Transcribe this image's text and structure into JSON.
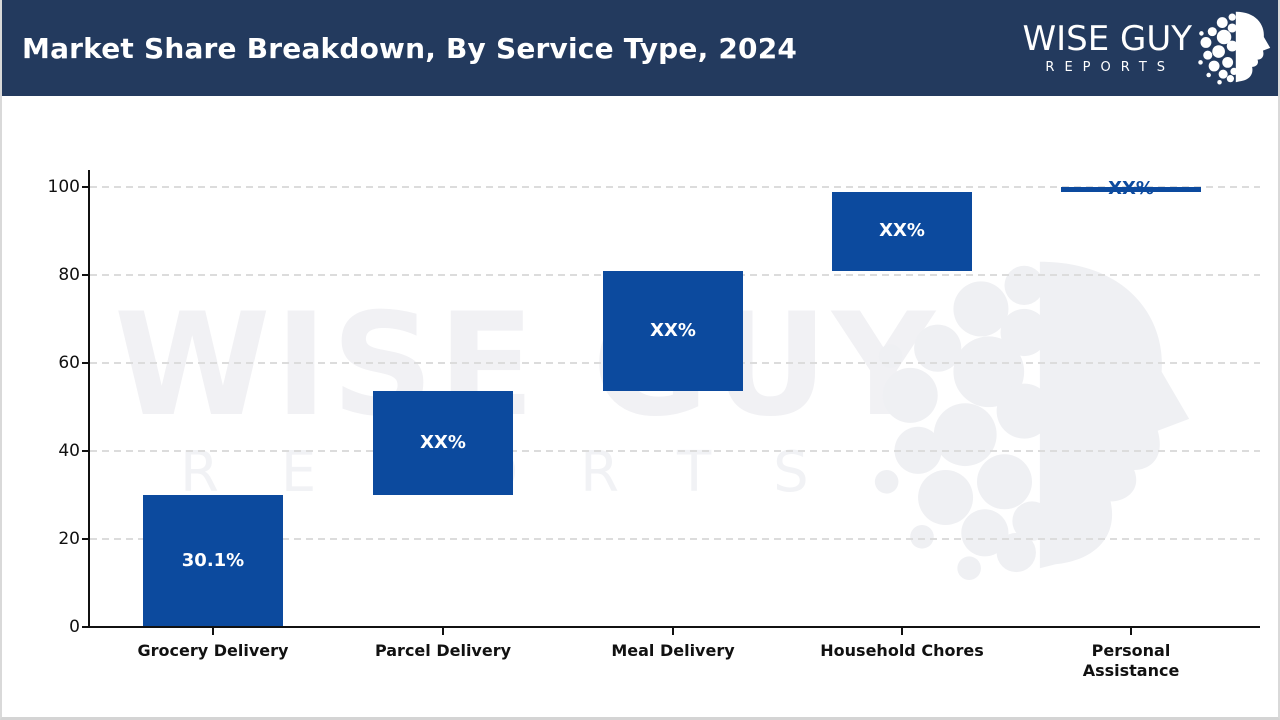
{
  "header": {
    "title": "Market Share Breakdown, By Service Type, 2024",
    "bg_color": "#233a5e",
    "logo": {
      "name": "WISE GUY",
      "sub": "REPORTS"
    }
  },
  "watermark": {
    "name": "WISE GUY",
    "sub": "REPORTS"
  },
  "chart_data": {
    "type": "bar",
    "subtype": "waterfall",
    "title": "Market Share Breakdown, By Service Type, 2024",
    "categories": [
      "Grocery Delivery",
      "Parcel Delivery",
      "Meal Delivery",
      "Household Chores",
      "Personal\nAssistance"
    ],
    "segments": [
      {
        "category": "Grocery Delivery",
        "start": 0,
        "end": 30.1,
        "label": "30.1%"
      },
      {
        "category": "Parcel Delivery",
        "start": 30.1,
        "end": 53.6,
        "label": "XX%"
      },
      {
        "category": "Meal Delivery",
        "start": 53.6,
        "end": 81.0,
        "label": "XX%"
      },
      {
        "category": "Household Chores",
        "start": 81.0,
        "end": 98.9,
        "label": "XX%"
      },
      {
        "category": "Personal Assistance",
        "start": 98.9,
        "end": 100,
        "label": "XX%"
      }
    ],
    "ylim": [
      0,
      100
    ],
    "yticks": [
      0,
      20,
      40,
      60,
      80,
      100
    ],
    "grid": "horizontal-dashed",
    "legend": "none",
    "bar_color": "#0c4a9e",
    "bar_label_color": "#ffffff",
    "axis_color": "#111111",
    "gridline_color": "#dcdcdc"
  }
}
